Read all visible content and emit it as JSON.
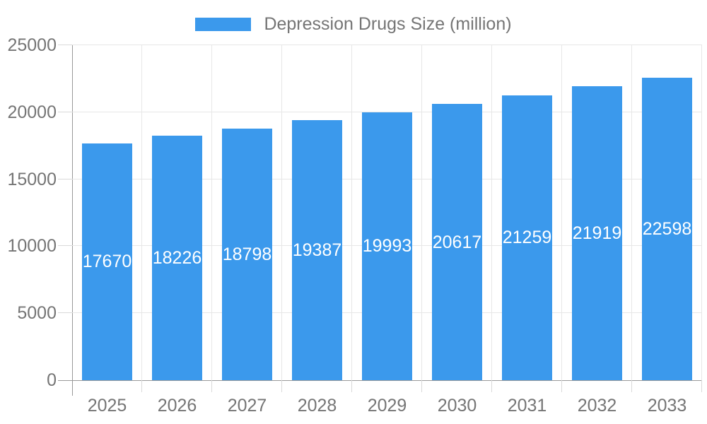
{
  "chart_data": {
    "type": "bar",
    "title": "Depression Drugs Size (million)",
    "legend": [
      "Depression Drugs Size (million)"
    ],
    "legend_position": "top-center",
    "categories": [
      "2025",
      "2026",
      "2027",
      "2028",
      "2029",
      "2030",
      "2031",
      "2032",
      "2033"
    ],
    "series": [
      {
        "name": "Depression Drugs Size (million)",
        "values": [
          17670,
          18226,
          18798,
          19387,
          19993,
          20617,
          21259,
          21919,
          22598
        ]
      }
    ],
    "xlabel": "",
    "ylabel": "",
    "ylim": [
      0,
      25000
    ],
    "yticks": [
      0,
      5000,
      10000,
      15000,
      20000,
      25000
    ],
    "grid": true,
    "value_labels": "inside-center",
    "colors": {
      "bar": "#3b99ec",
      "value_label_text": "#ffffff",
      "axis_line": "#999999",
      "gridline": "#e7e7e7",
      "tick": "#d9d9d9",
      "axis_text": "#757575",
      "background": "#ffffff"
    }
  }
}
